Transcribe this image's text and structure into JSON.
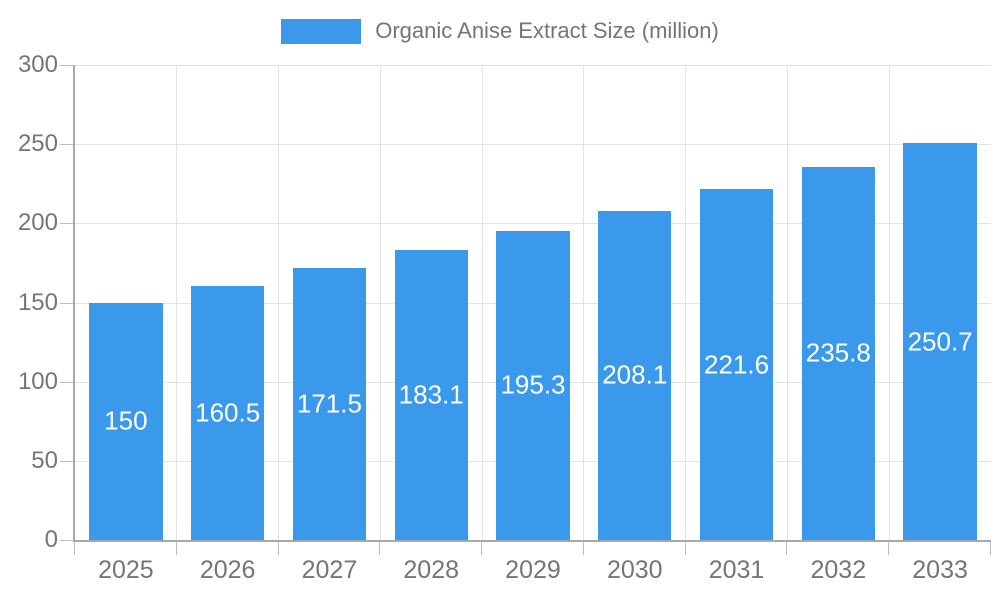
{
  "legend": {
    "label": "Organic Anise Extract Size (million)"
  },
  "colors": {
    "bar_fill": "#3B99EC",
    "axis_line": "#A8A8A8",
    "gridline": "#E3E3E3",
    "tick": "#BDBDBD",
    "axis_text": "#757575",
    "bar_label_text": "#FFFFFF",
    "background": "#FFFFFF"
  },
  "chart_data": {
    "type": "bar",
    "title": "Organic Anise Extract Size (million)",
    "series_name": "Organic Anise Extract Size (million)",
    "categories": [
      "2025",
      "2026",
      "2027",
      "2028",
      "2029",
      "2030",
      "2031",
      "2032",
      "2033"
    ],
    "values": [
      150,
      160.5,
      171.5,
      183.1,
      195.3,
      208.1,
      221.6,
      235.8,
      250.7
    ],
    "xlabel": "",
    "ylabel": "",
    "ylim": [
      0,
      300
    ],
    "yticks": [
      0,
      50,
      100,
      150,
      200,
      250,
      300
    ],
    "grid": true,
    "gridlines": "horizontal-and-vertical-category-boundaries",
    "legend_position": "top-center",
    "value_labels": "inside-center-white",
    "bar_width_fraction": 0.72
  }
}
